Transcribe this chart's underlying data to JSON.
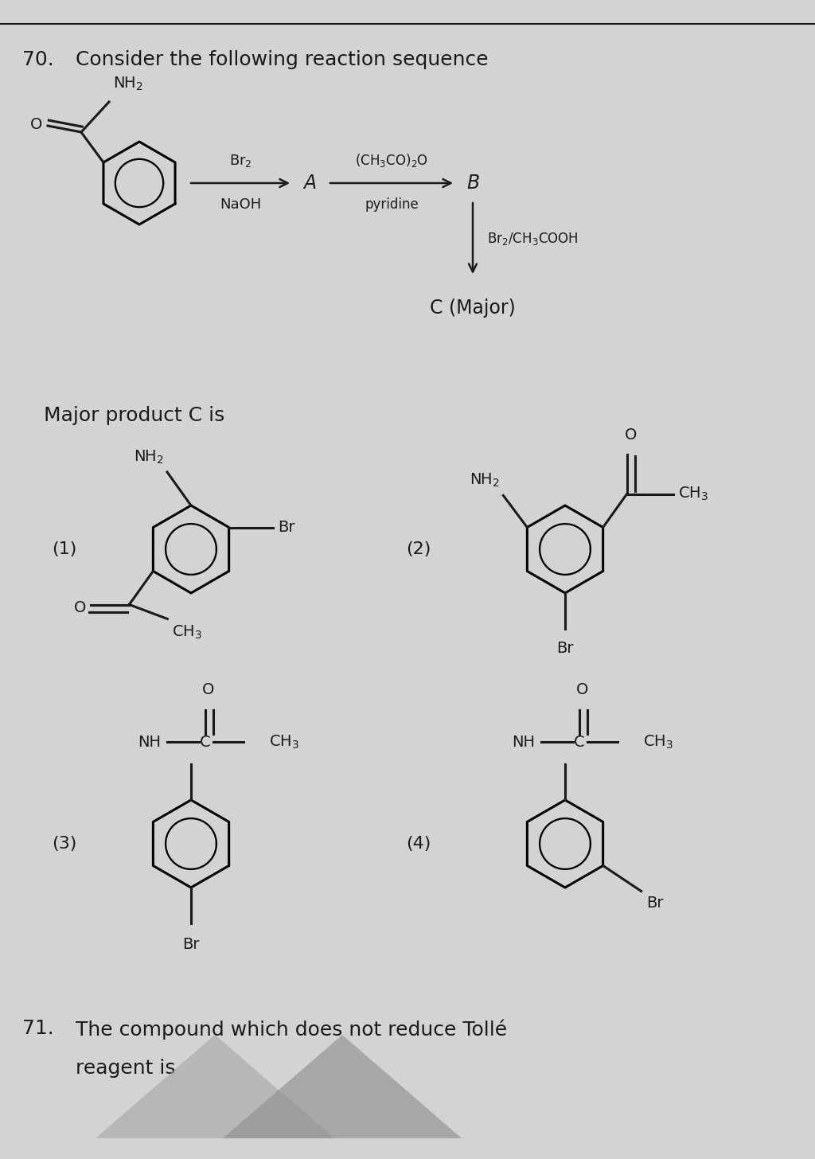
{
  "bg_color": "#d3d3d3",
  "text_color": "#1a1a1a",
  "title_num": "70.",
  "title_text": "Consider the following reaction sequence",
  "major_product_text": "Major product C is",
  "q71_text": "71.",
  "q71_body": "The compound which does not reduce Tollé",
  "q71_reagent": "reagent is",
  "figw": 10.24,
  "figh": 14.56,
  "dpi": 100
}
